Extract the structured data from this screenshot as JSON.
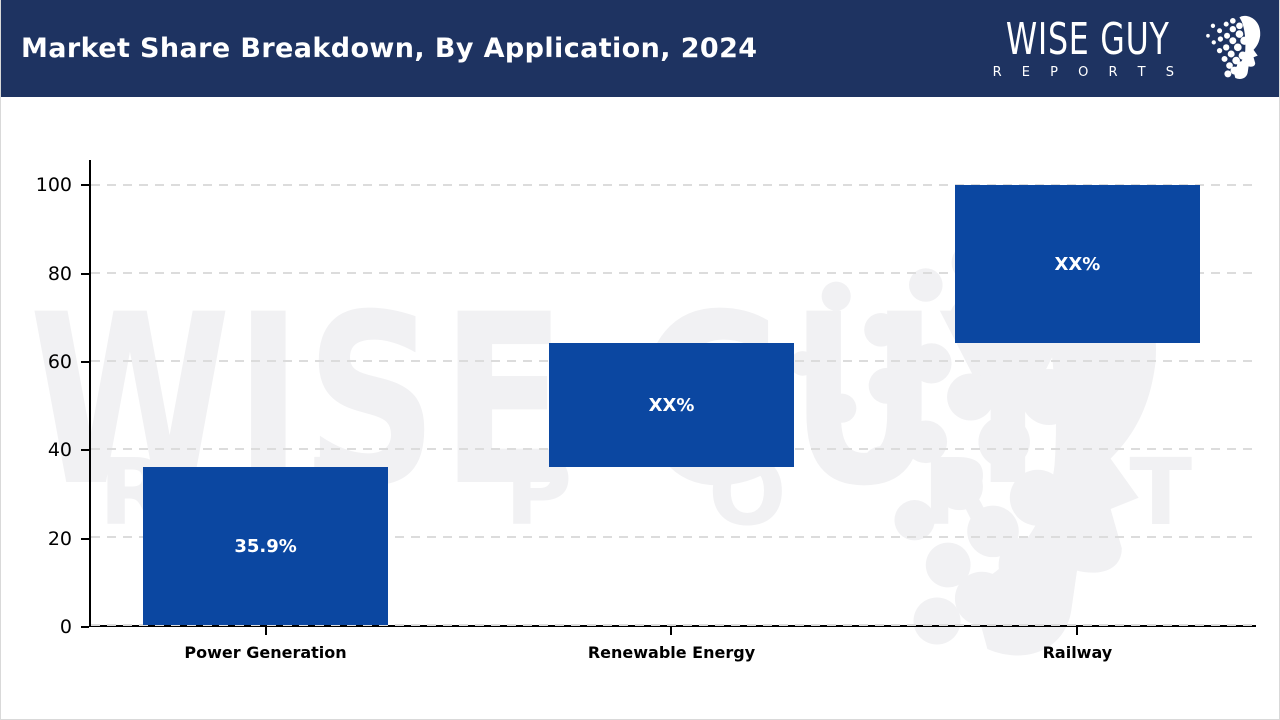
{
  "header": {
    "title": "Market Share Breakdown, By Application, 2024",
    "logo": {
      "line1": "WISE GUY",
      "line2": "R E P O R T S"
    }
  },
  "watermark": {
    "line1": "WISE GUY",
    "line2": "R E P O R T S"
  },
  "colors": {
    "header_bg": "#1e3361",
    "header_text": "#ffffff",
    "bar": "#0b47a1",
    "bar_label_text": "#ffffff",
    "gridline": "#dcdcdc",
    "axis": "#000000",
    "tick_text": "#000000",
    "watermark": "#f1f1f3"
  },
  "chart_data": {
    "type": "bar",
    "subtype": "waterfall",
    "title": "Market Share Breakdown, By Application, 2024",
    "categories": [
      "Power Generation",
      "Renewable Energy",
      "Railway"
    ],
    "segments": [
      {
        "category": "Power Generation",
        "start": 0,
        "end": 35.9,
        "label": "35.9%"
      },
      {
        "category": "Renewable Energy",
        "start": 35.9,
        "end": 64.1,
        "label": "XX%"
      },
      {
        "category": "Railway",
        "start": 64.1,
        "end": 100,
        "label": "XX%"
      }
    ],
    "yticks": [
      0,
      20,
      40,
      60,
      80,
      100
    ],
    "ylim": [
      0,
      105.7
    ],
    "xlabel": "",
    "ylabel": "",
    "grid": "dashed-horizontal",
    "legend": "none"
  }
}
